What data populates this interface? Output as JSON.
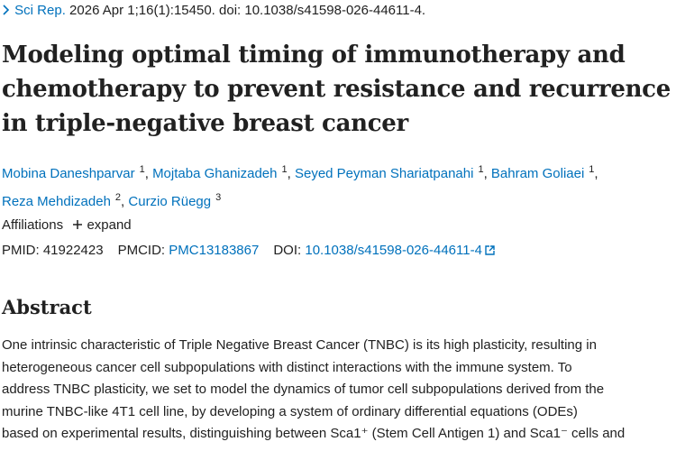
{
  "citation": {
    "journal": "Sci Rep.",
    "details": "2026 Apr 1;16(1):15450. doi: 10.1038/s41598-026-44611-4."
  },
  "title": {
    "lines": [
      "Modeling optimal timing of immunotherapy and",
      "chemotherapy to prevent resistance and recurrence",
      "in triple-negative breast cancer"
    ]
  },
  "authors": [
    {
      "name": "Mobina Daneshparvar",
      "affiliation": "1"
    },
    {
      "name": "Mojtaba Ghanizadeh",
      "affiliation": "1"
    },
    {
      "name": "Seyed Peyman Shariatpanahi",
      "affiliation": "1"
    },
    {
      "name": "Bahram Goliaei",
      "affiliation": "1"
    },
    {
      "name": "Reza Mehdizadeh",
      "affiliation": "2"
    },
    {
      "name": "Curzio Rüegg",
      "affiliation": "3"
    }
  ],
  "author_separator": ",",
  "affiliations": {
    "label": "Affiliations",
    "toggle": "expand"
  },
  "identifiers": [
    {
      "label": "PMID:",
      "value": "41922423"
    },
    {
      "label": "PMCID:",
      "value": "PMC13183867"
    },
    {
      "label": "DOI:",
      "value": "10.1038/s41598-026-44611-4"
    }
  ],
  "abstract": {
    "heading": "Abstract",
    "lines": [
      "One intrinsic characteristic of Triple Negative Breast Cancer (TNBC) is its high plasticity, resulting in",
      "heterogeneous cancer cell subpopulations with distinct interactions with the immune system. To",
      "address TNBC plasticity, we set to model the dynamics of tumor cell subpopulations derived from the",
      "murine TNBC-like 4T1 cell line, by developing a system of ordinary differential equations (ODEs)",
      "based on experimental results, distinguishing between Sca1⁺ (Stem Cell Antigen 1) and Sca1⁻ cells and"
    ]
  }
}
